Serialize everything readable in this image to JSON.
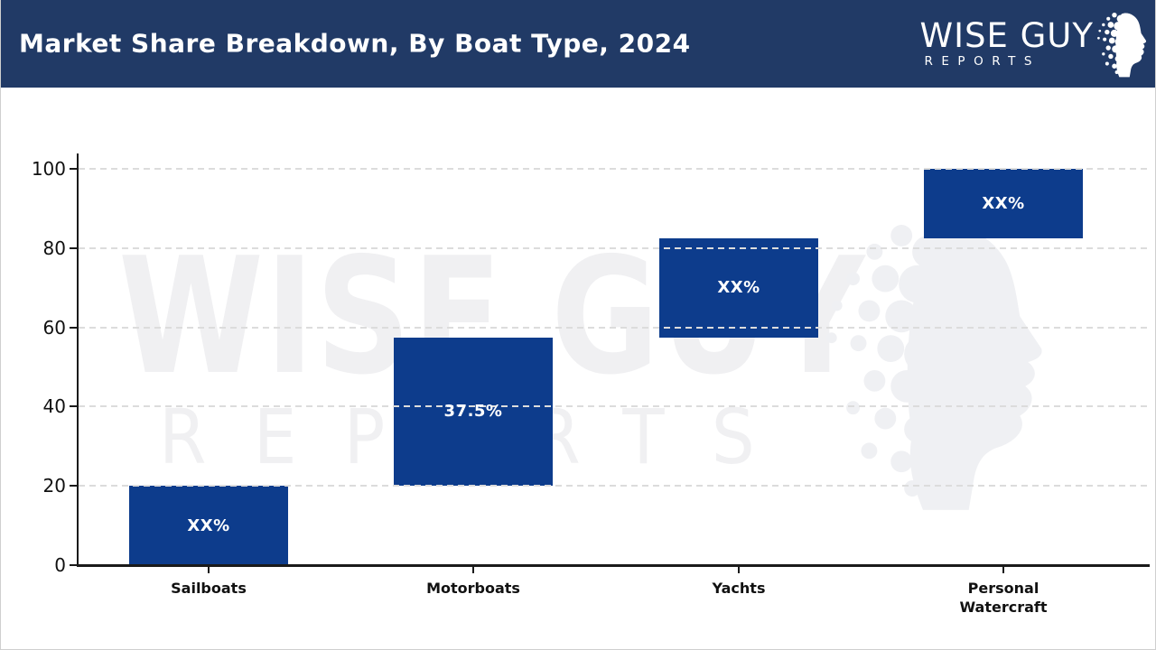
{
  "header": {
    "title": "Market Share Breakdown, By Boat Type, 2024",
    "logo": {
      "name": "WISE GUY REPORTS",
      "line1": "WISE GUY",
      "line2": "REPORTS"
    }
  },
  "watermark": {
    "line1": "WISE GUY",
    "line2": "REPORTS"
  },
  "chart_data": {
    "type": "bar",
    "subtype": "floating-waterfall",
    "title": "Market Share Breakdown, By Boat Type, 2024",
    "categories": [
      "Sailboats",
      "Motorboats",
      "Yachts",
      "Personal Watercraft"
    ],
    "bars": [
      {
        "category": "Sailboats",
        "start": 0,
        "end": 20,
        "label": "XX%"
      },
      {
        "category": "Motorboats",
        "start": 20,
        "end": 57.5,
        "label": "37.5%"
      },
      {
        "category": "Yachts",
        "start": 57.5,
        "end": 82.5,
        "label": "XX%"
      },
      {
        "category": "Personal Watercraft",
        "start": 82.5,
        "end": 100,
        "label": "XX%"
      }
    ],
    "ylim": [
      0,
      100
    ],
    "yticks": [
      0,
      20,
      40,
      60,
      80,
      100
    ],
    "xlabel": "",
    "ylabel": "",
    "grid": "horizontal-dashed",
    "legend": "none",
    "bar_color": "#0d3c8c",
    "bar_label_color": "#ffffff"
  },
  "colors": {
    "header_bg": "#213a66",
    "title_text": "#ffffff",
    "bar": "#0d3c8c",
    "grid_line": "#dcdcdc",
    "axis_line": "#1a1a1a",
    "tick_text": "#111111",
    "watermark": "#f0f0f2"
  }
}
